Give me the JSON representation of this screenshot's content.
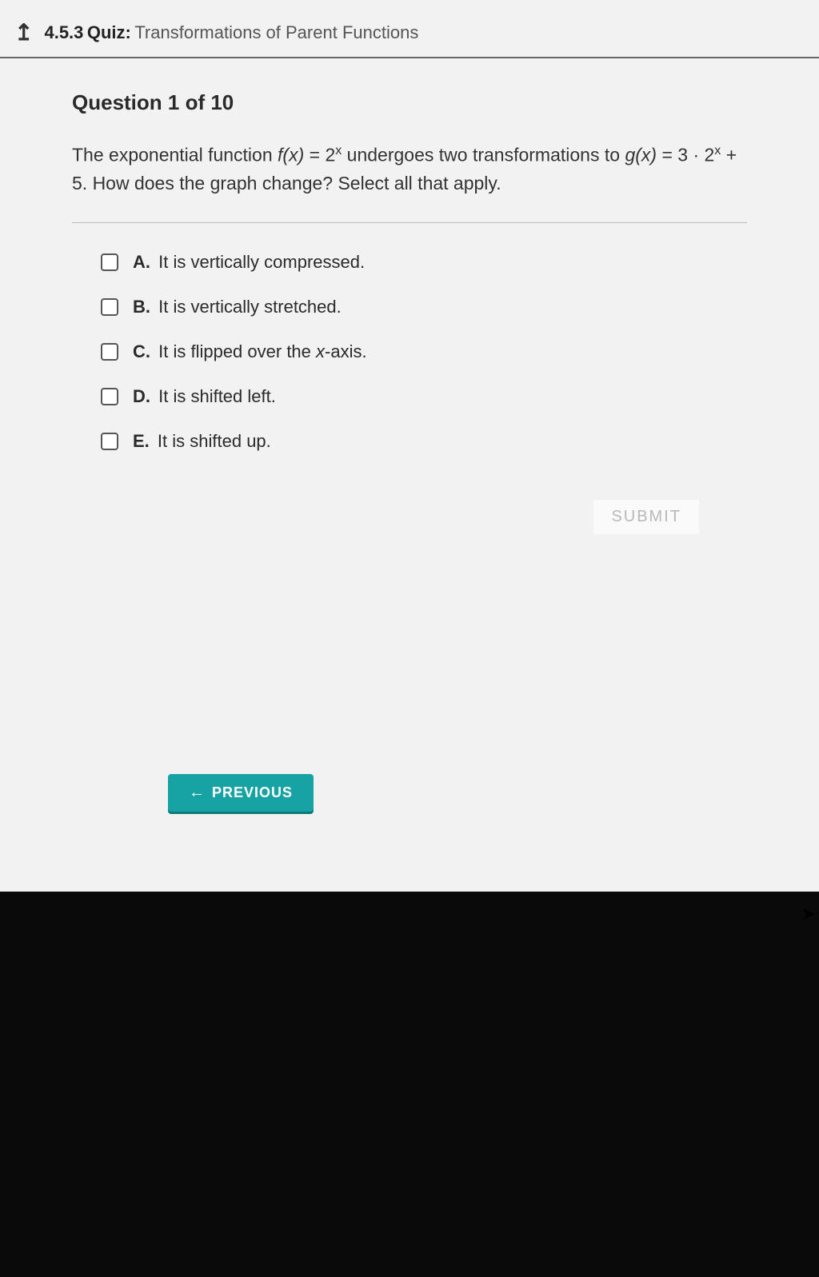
{
  "header": {
    "section_number": "4.5.3",
    "section_label": "Quiz:",
    "title": "Transformations of Parent Functions"
  },
  "question": {
    "heading": "Question 1 of 10",
    "text_prefix": "The exponential function ",
    "fx_label": "f(x)",
    "fx_equals": " = 2",
    "fx_exp": "x",
    "text_middle": " undergoes two transformations to ",
    "gx_label": "g(x)",
    "gx_equals": " = 3 · 2",
    "gx_exp": "x",
    "gx_tail": " + 5",
    "text_suffix": ". How does the graph change? Select all that apply."
  },
  "options": [
    {
      "letter": "A.",
      "text": "It is vertically compressed."
    },
    {
      "letter": "B.",
      "text": "It is vertically stretched."
    },
    {
      "letter": "C.",
      "text_pre": "It is flipped over the ",
      "ital": "x",
      "text_post": "-axis."
    },
    {
      "letter": "D.",
      "text": "It is shifted left."
    },
    {
      "letter": "E.",
      "text": "It is shifted up."
    }
  ],
  "buttons": {
    "submit": "SUBMIT",
    "previous": "PREVIOUS"
  },
  "colors": {
    "background": "#f2f2f2",
    "page_outer": "#0a0a0a",
    "text": "#2a2a2a",
    "divider": "#bbbbbb",
    "submit_text": "#b8b8b8",
    "prev_bg": "#17a3a3",
    "prev_shadow": "#0d7a7a",
    "prev_text": "#ffffff"
  }
}
